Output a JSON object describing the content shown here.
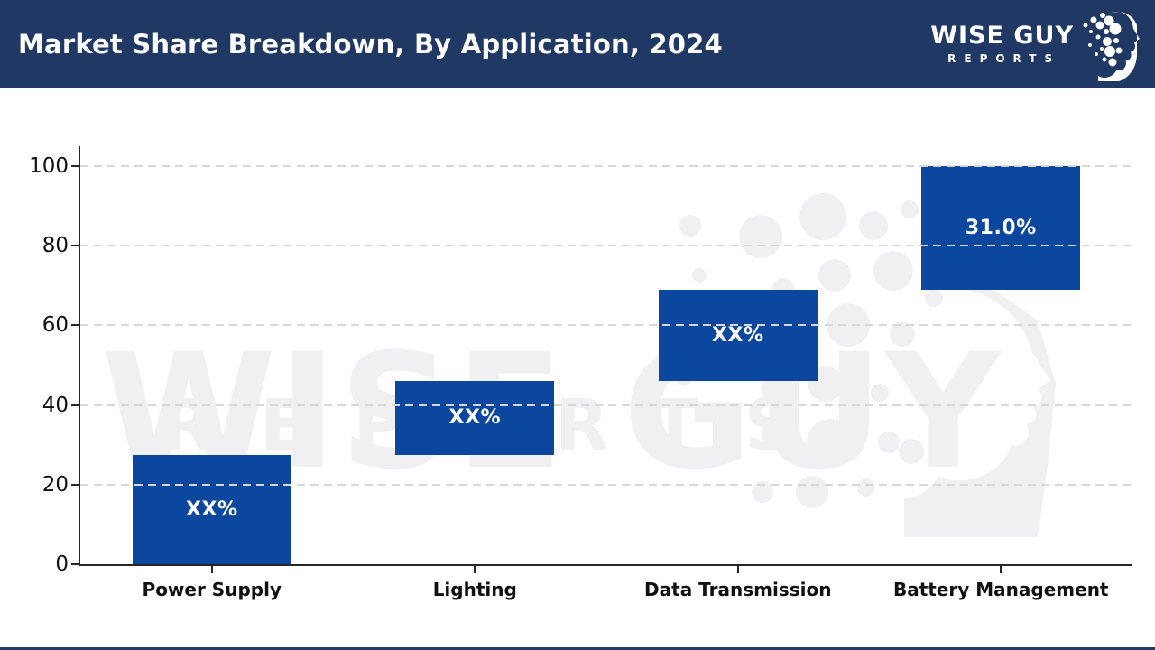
{
  "header": {
    "title": "Market Share Breakdown, By Application, 2024",
    "logo": {
      "wordmark": "WISE GUY",
      "subtext": "REPORTS"
    }
  },
  "watermark": {
    "wordmark": "WISE GUY",
    "subtext": "REPORTS"
  },
  "chart_data": {
    "type": "bar",
    "subtype": "waterfall",
    "title": "Market Share Breakdown, By Application, 2024",
    "categories": [
      "Power Supply",
      "Lighting",
      "Data Transmission",
      "Battery Management"
    ],
    "bars": [
      {
        "category": "Power Supply",
        "start": 0,
        "end": 27.5,
        "value": 27.5,
        "label": "XX%"
      },
      {
        "category": "Lighting",
        "start": 27.5,
        "end": 46,
        "value": 18.5,
        "label": "XX%"
      },
      {
        "category": "Data Transmission",
        "start": 46,
        "end": 69,
        "value": 23,
        "label": "XX%"
      },
      {
        "category": "Battery Management",
        "start": 69,
        "end": 100,
        "value": 31,
        "label": "31.0%"
      }
    ],
    "yticks": [
      0,
      20,
      40,
      60,
      80,
      100
    ],
    "ylim": [
      0,
      105
    ],
    "xlabel": "",
    "ylabel": "",
    "grid": "horizontal-dashed-over-bars",
    "legend": "none",
    "bar_color": "#0b479f",
    "bar_label_color": "#ffffff"
  },
  "colors": {
    "header_bg": "#1f3864",
    "footer_bg": "#1f3864",
    "title_text": "#ffffff",
    "axis": "#262626",
    "tick_label": "#111111",
    "gridline": "#d7d7d7",
    "watermark": "#f0f0f3",
    "background": "#ffffff"
  }
}
